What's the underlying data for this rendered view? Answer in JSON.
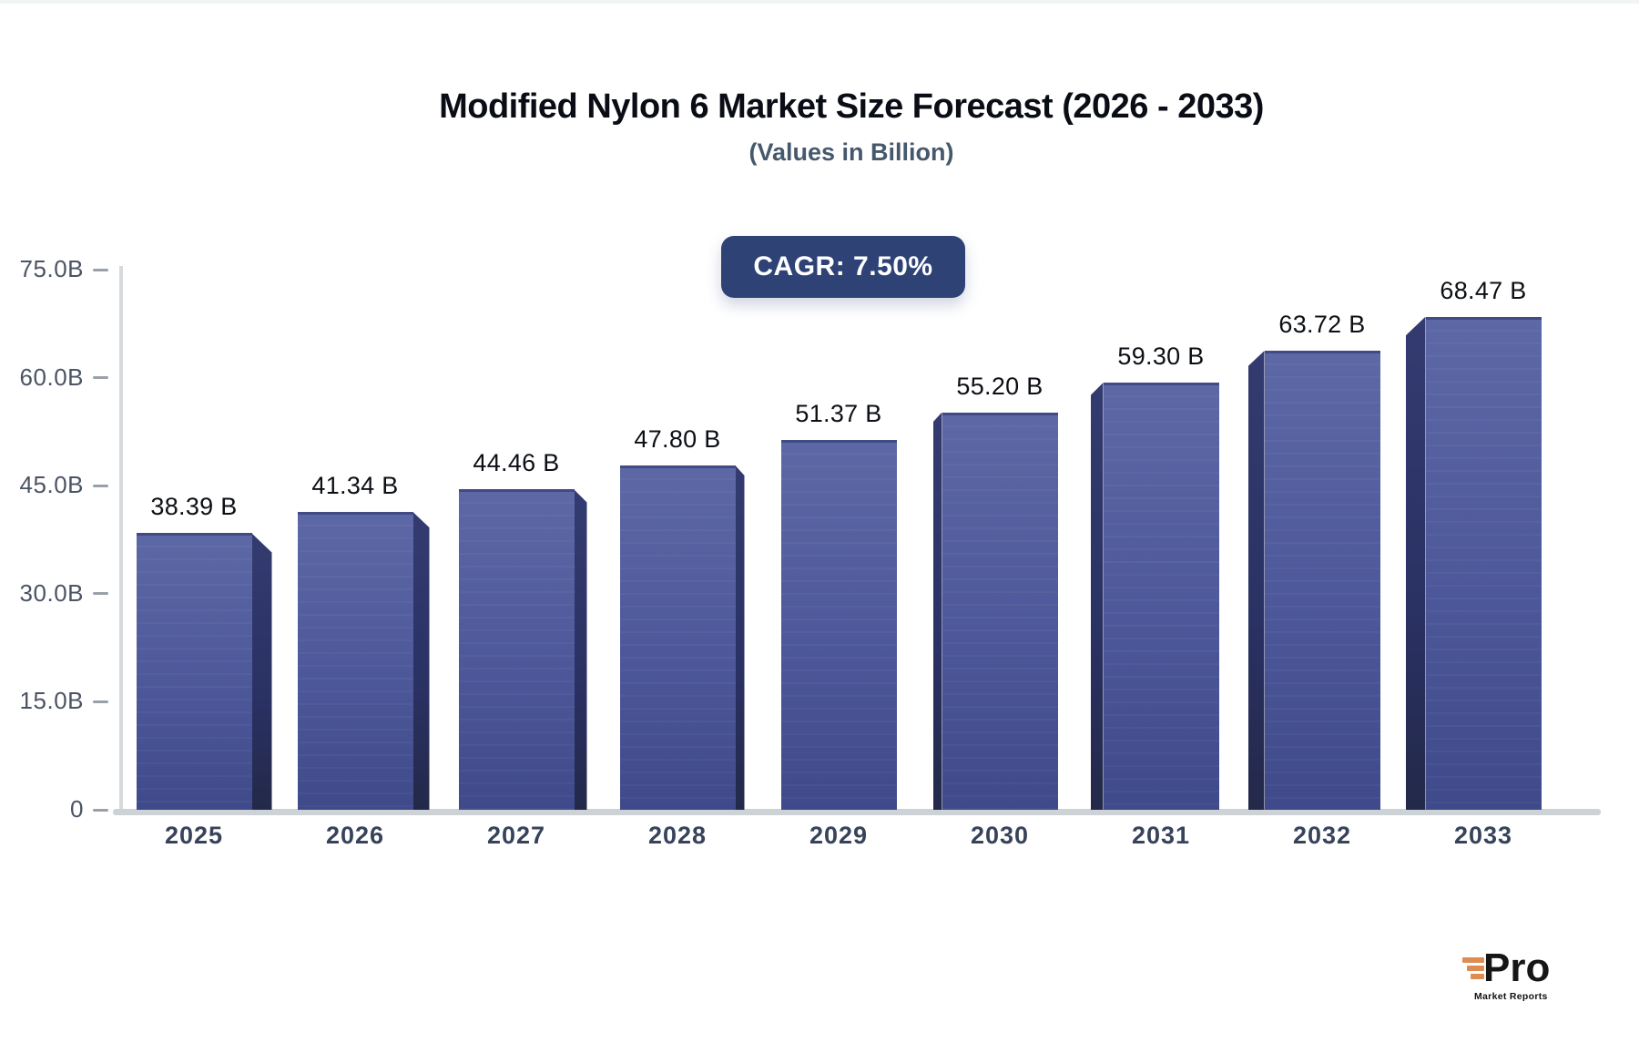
{
  "header": {
    "title": "Modified Nylon 6 Market Size Forecast (2026 - 2033)",
    "subtitle": "(Values in Billion)",
    "cagr_badge": "CAGR: 7.50%"
  },
  "chart_data": {
    "type": "bar",
    "title": "Modified Nylon 6 Market Size Forecast (2026 - 2033)",
    "subtitle": "(Values in Billion)",
    "annotation": "CAGR: 7.50%",
    "categories": [
      "2025",
      "2026",
      "2027",
      "2028",
      "2029",
      "2030",
      "2031",
      "2032",
      "2033"
    ],
    "values": [
      38.39,
      41.34,
      44.46,
      47.8,
      51.37,
      55.2,
      59.3,
      63.72,
      68.47
    ],
    "value_labels": [
      "38.39 B",
      "41.34 B",
      "44.46 B",
      "47.80 B",
      "51.37 B",
      "55.20 B",
      "59.30 B",
      "63.72 B",
      "68.47 B"
    ],
    "y_ticks": [
      {
        "value": 0,
        "label": "0"
      },
      {
        "value": 15,
        "label": "15.0B"
      },
      {
        "value": 30,
        "label": "30.0B"
      },
      {
        "value": 45,
        "label": "45.0B"
      },
      {
        "value": 60,
        "label": "60.0B"
      },
      {
        "value": 75,
        "label": "75.0B"
      }
    ],
    "ylim": [
      0,
      75
    ],
    "xlabel": "",
    "ylabel": "",
    "grid": false,
    "legend": false,
    "colors": {
      "bar_face_top": "#5d68a6",
      "bar_face_bottom": "#3f4a8a",
      "bar_side": "#2a3163",
      "badge_background": "#2e4276",
      "badge_text": "#ffffff",
      "axis": "#cdd2d6"
    }
  },
  "logo": {
    "brand": "Pro",
    "tagline": "Market Reports",
    "accent_color": "#dd8d52"
  }
}
